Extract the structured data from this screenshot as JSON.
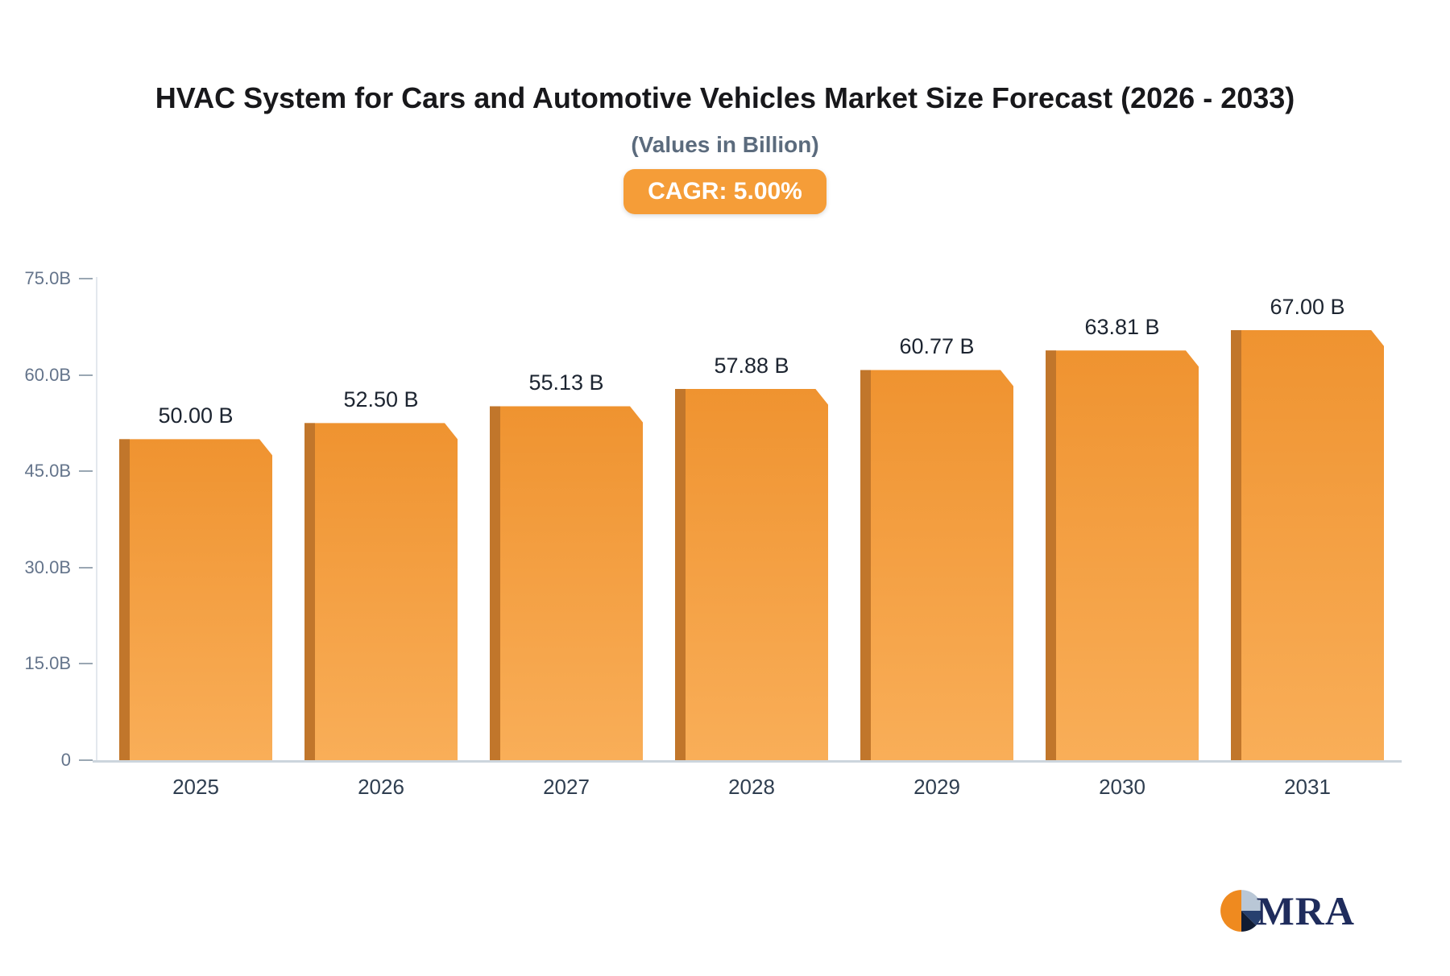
{
  "chart_data": {
    "type": "bar",
    "title": "HVAC System for Cars and Automotive Vehicles Market Size Forecast (2026 - 2033)",
    "subtitle": "(Values in Billion)",
    "badge_label": "CAGR: 5.00%",
    "categories": [
      "2025",
      "2026",
      "2027",
      "2028",
      "2029",
      "2030",
      "2031"
    ],
    "values": [
      50.0,
      52.5,
      55.13,
      57.88,
      60.77,
      63.81,
      67.0
    ],
    "value_labels": [
      "50.00 B",
      "52.50 B",
      "55.13 B",
      "57.88 B",
      "60.77 B",
      "63.81 B",
      "67.00 B"
    ],
    "ylim": [
      0,
      75
    ],
    "y_ticks": [
      {
        "value": 75,
        "label": "75.0B"
      },
      {
        "value": 60,
        "label": "60.0B"
      },
      {
        "value": 45,
        "label": "45.0B"
      },
      {
        "value": 30,
        "label": "30.0B"
      },
      {
        "value": 15,
        "label": "15.0B"
      },
      {
        "value": 0,
        "label": "0"
      }
    ],
    "grid": false,
    "legend": "none",
    "colors": {
      "bar_face_top": "#ef9330",
      "bar_face_bottom": "#f9ae58",
      "bar_side": "#c1762b",
      "badge_bg": "#f59d38",
      "badge_text": "#ffffff",
      "axis_text": "#64748b",
      "value_label_text": "#1c2430",
      "title_text": "#18181b",
      "subtitle_text": "#5b6b7d"
    }
  },
  "logo": {
    "text": "MRA",
    "colors": {
      "wedge_orange": "#ef8a1f",
      "wedge_lightblue": "#b9c7d6",
      "wedge_navy": "#27406e",
      "wedge_dark": "#111c33",
      "text": "#1f2c5c"
    }
  }
}
